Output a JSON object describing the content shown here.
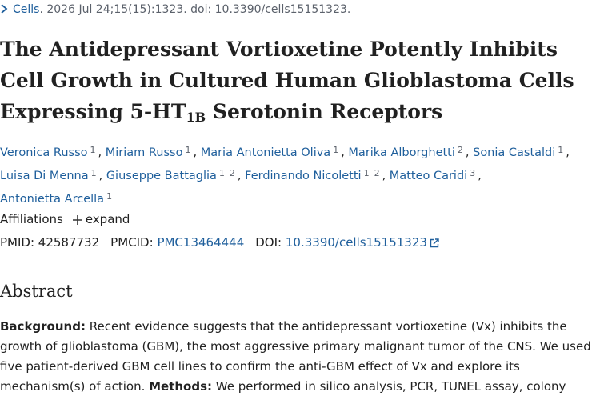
{
  "citation": {
    "journal": "Cells",
    "details": ". 2026 Jul 24;15(15):1323. doi: 10.3390/cells15151323."
  },
  "title": {
    "main": "The Antidepressant Vortioxetine Potently Inhibits Cell Growth in Cultured Human Glioblastoma Cells Expressing 5-HT",
    "subscript": "1B",
    "end": " Serotonin Receptors"
  },
  "author_separator": ",",
  "authors": [
    {
      "name": "Veronica Russo",
      "affiliations": [
        "1"
      ]
    },
    {
      "name": "Miriam Russo",
      "affiliations": [
        "1"
      ]
    },
    {
      "name": "Maria Antonietta Oliva",
      "affiliations": [
        "1"
      ]
    },
    {
      "name": "Marika Alborghetti",
      "affiliations": [
        "2"
      ]
    },
    {
      "name": "Sonia Castaldi",
      "affiliations": [
        "1"
      ]
    },
    {
      "name": "Luisa Di Menna",
      "affiliations": [
        "1"
      ]
    },
    {
      "name": "Giuseppe Battaglia",
      "affiliations": [
        "1",
        "2"
      ]
    },
    {
      "name": "Ferdinando Nicoletti",
      "affiliations": [
        "1",
        "2"
      ]
    },
    {
      "name": "Matteo Caridi",
      "affiliations": [
        "3"
      ]
    },
    {
      "name": "Antonietta Arcella",
      "affiliations": [
        "1"
      ]
    }
  ],
  "affiliations": {
    "label": "Affiliations",
    "action": "expand"
  },
  "identifiers": [
    {
      "label": "PMID:",
      "value": "42587732"
    },
    {
      "label": "PMCID:",
      "value": "PMC13464444"
    },
    {
      "label": "DOI:",
      "value": "10.3390/cells15151323"
    }
  ],
  "abstract": {
    "heading": "Abstract",
    "paragraph": [
      {
        "label": "Background:",
        "text": " Recent evidence suggests that the antidepressant vortioxetine (Vx) inhibits the growth of glioblastoma (GBM), the most aggressive primary malignant tumor of the CNS. We used five patient-derived GBM cell lines to confirm the anti-GBM effect of Vx and explore its mechanism(s) of action. "
      },
      {
        "label": "Methods:",
        "text": " We performed in silico analysis, PCR, TUNEL assay, colony assay, and proliferation"
      }
    ]
  }
}
